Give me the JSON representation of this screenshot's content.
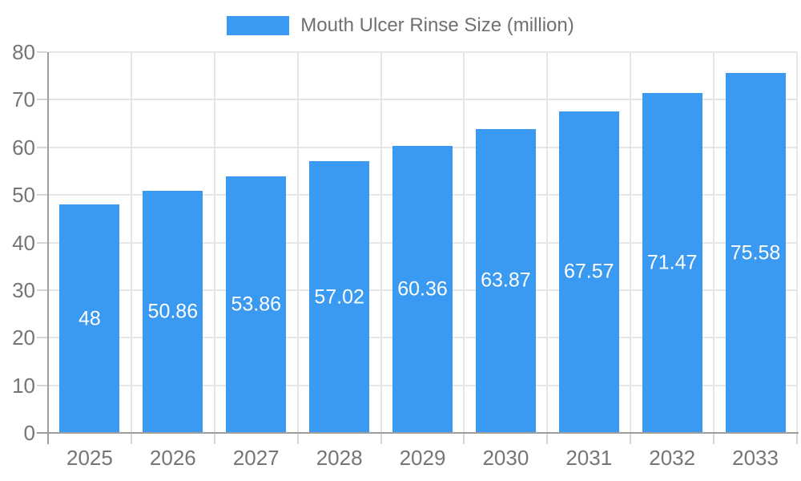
{
  "legend": {
    "label": "Mouth Ulcer Rinse Size (million)"
  },
  "chart_data": {
    "type": "bar",
    "title": "Mouth Ulcer Rinse Size (million)",
    "xlabel": "",
    "ylabel": "",
    "categories": [
      "2025",
      "2026",
      "2027",
      "2028",
      "2029",
      "2030",
      "2031",
      "2032",
      "2033"
    ],
    "values": [
      48,
      50.86,
      53.86,
      57.02,
      60.36,
      63.87,
      67.57,
      71.47,
      75.58
    ],
    "value_labels": [
      "48",
      "50.86",
      "53.86",
      "57.02",
      "60.36",
      "63.87",
      "67.57",
      "71.47",
      "75.58"
    ],
    "ylim": [
      0,
      80
    ],
    "ytick_interval": 10,
    "ytick_labels": [
      "0",
      "10",
      "20",
      "30",
      "40",
      "50",
      "60",
      "70",
      "80"
    ],
    "grid": true,
    "legend_position": "top",
    "colors": {
      "bar": "#3a99f0",
      "bar_label_text": "#ffffff",
      "axis_text": "#757575",
      "legend_text": "#707070",
      "axis_line": "#9e9e9e",
      "gridline": "#e6e6e6",
      "minor_tick": "#d6d6d6",
      "background": "#ffffff"
    }
  }
}
